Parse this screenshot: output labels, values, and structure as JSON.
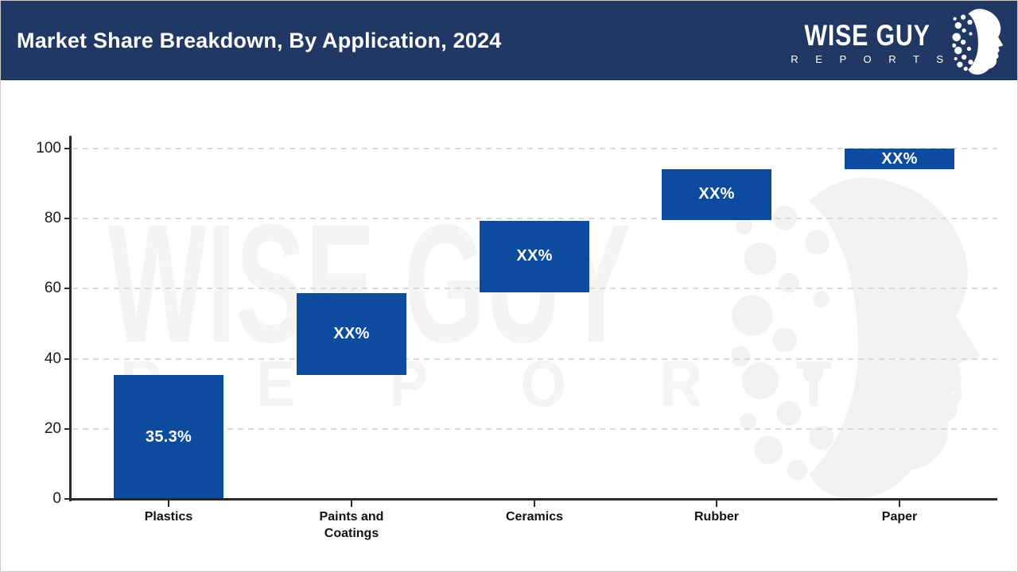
{
  "header": {
    "title": "Market Share Breakdown, By Application, 2024",
    "logo": {
      "line1": "WISE GUY",
      "line2": "R E P O R T S"
    }
  },
  "watermark": {
    "line1": "WISE GUY",
    "line2": "R E P O R T S"
  },
  "colors": {
    "header_bg": "#213864",
    "bar": "#0c4b9e",
    "bar_label": "#ffffff",
    "gridline": "#d9d9d9",
    "axis": "#2a2a2a",
    "tick_label": "#1a1a1a",
    "watermark": "#f4f4f4",
    "watermark_face": "#f2f2f2"
  },
  "chart_data": {
    "type": "bar",
    "subtype": "waterfall",
    "title": "Market Share Breakdown, By Application, 2024",
    "xlabel": "",
    "ylabel": "",
    "ylim": [
      0,
      100
    ],
    "yticks": [
      0,
      20,
      40,
      60,
      80,
      100
    ],
    "grid": "horizontal-dashed",
    "legend": "none",
    "categories": [
      "Plastics",
      "Paints and\nCoatings",
      "Ceramics",
      "Rubber",
      "Paper"
    ],
    "segments": [
      {
        "category": "Plastics",
        "start": 0,
        "end": 35.3,
        "label": "35.3%"
      },
      {
        "category": "Paints and\nCoatings",
        "start": 35.4,
        "end": 58.8,
        "label": "XX%"
      },
      {
        "category": "Ceramics",
        "start": 59.0,
        "end": 79.4,
        "label": "XX%"
      },
      {
        "category": "Rubber",
        "start": 79.7,
        "end": 94.0,
        "label": "XX%"
      },
      {
        "category": "Paper",
        "start": 94.0,
        "end": 100.0,
        "label": "XX%"
      }
    ]
  }
}
